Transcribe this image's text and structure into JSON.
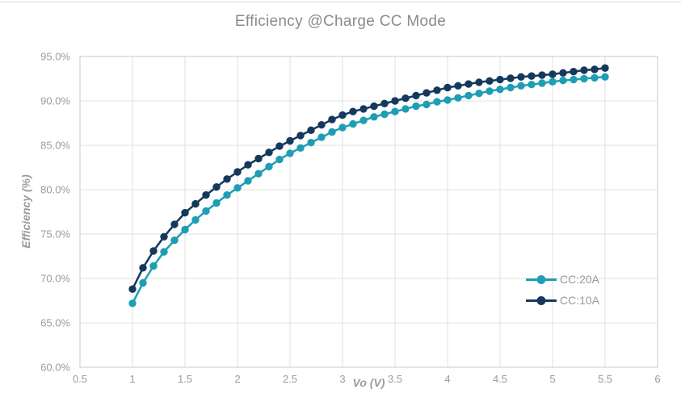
{
  "page": {
    "background": "#ffffff"
  },
  "chart_data": {
    "type": "line",
    "title": "Efficiency @Charge CC Mode",
    "xlabel": "Vo (V)",
    "ylabel": "Efficiency (%)",
    "xlim": [
      0.5,
      6
    ],
    "ylim": [
      60,
      95
    ],
    "x_ticks": [
      0.5,
      1,
      1.5,
      2,
      2.5,
      3,
      3.5,
      4,
      4.5,
      5,
      5.5,
      6
    ],
    "x_tick_labels": [
      "0.5",
      "1",
      "1.5",
      "2",
      "2.5",
      "3",
      "3.5",
      "4",
      "4.5",
      "5",
      "5.5",
      "6"
    ],
    "y_ticks": [
      60,
      65,
      70,
      75,
      80,
      85,
      90,
      95
    ],
    "y_tick_labels": [
      "60.0%",
      "65.0%",
      "70.0%",
      "75.0%",
      "80.0%",
      "85.0%",
      "90.0%",
      "95.0%"
    ],
    "grid": true,
    "legend_position": "inside-right",
    "colors": {
      "grid_line": "#e2e2e2",
      "plot_border": "#c9c9c9",
      "title_text": "#8b8b8b",
      "tick_text": "#9b9b9b",
      "legend_text": "#9a9a9a"
    },
    "x": [
      1.0,
      1.1,
      1.2,
      1.3,
      1.4,
      1.5,
      1.6,
      1.7,
      1.8,
      1.9,
      2.0,
      2.1,
      2.2,
      2.3,
      2.4,
      2.5,
      2.6,
      2.7,
      2.8,
      2.9,
      3.0,
      3.1,
      3.2,
      3.3,
      3.4,
      3.5,
      3.6,
      3.7,
      3.8,
      3.9,
      4.0,
      4.1,
      4.2,
      4.3,
      4.4,
      4.5,
      4.6,
      4.7,
      4.8,
      4.9,
      5.0,
      5.1,
      5.2,
      5.3,
      5.4,
      5.5
    ],
    "series": [
      {
        "name": "CC:20A",
        "color": "#1e9eb4",
        "marker": "circle",
        "values": [
          67.2,
          69.5,
          71.4,
          73.0,
          74.3,
          75.5,
          76.6,
          77.6,
          78.5,
          79.4,
          80.2,
          81.0,
          81.8,
          82.6,
          83.4,
          84.1,
          84.7,
          85.3,
          85.9,
          86.5,
          87.0,
          87.4,
          87.8,
          88.2,
          88.5,
          88.8,
          89.1,
          89.4,
          89.6,
          89.9,
          90.1,
          90.35,
          90.6,
          90.85,
          91.1,
          91.3,
          91.5,
          91.7,
          91.85,
          92.0,
          92.15,
          92.3,
          92.4,
          92.5,
          92.6,
          92.7
        ]
      },
      {
        "name": "CC:10A",
        "color": "#14395c",
        "marker": "circle",
        "values": [
          68.8,
          71.2,
          73.1,
          74.7,
          76.1,
          77.4,
          78.4,
          79.4,
          80.3,
          81.2,
          82.0,
          82.8,
          83.5,
          84.2,
          84.9,
          85.5,
          86.1,
          86.7,
          87.3,
          87.9,
          88.4,
          88.8,
          89.1,
          89.4,
          89.7,
          90.0,
          90.3,
          90.6,
          90.9,
          91.2,
          91.5,
          91.7,
          91.9,
          92.1,
          92.25,
          92.4,
          92.55,
          92.7,
          92.8,
          92.9,
          93.0,
          93.15,
          93.3,
          93.45,
          93.55,
          93.7
        ]
      }
    ]
  }
}
